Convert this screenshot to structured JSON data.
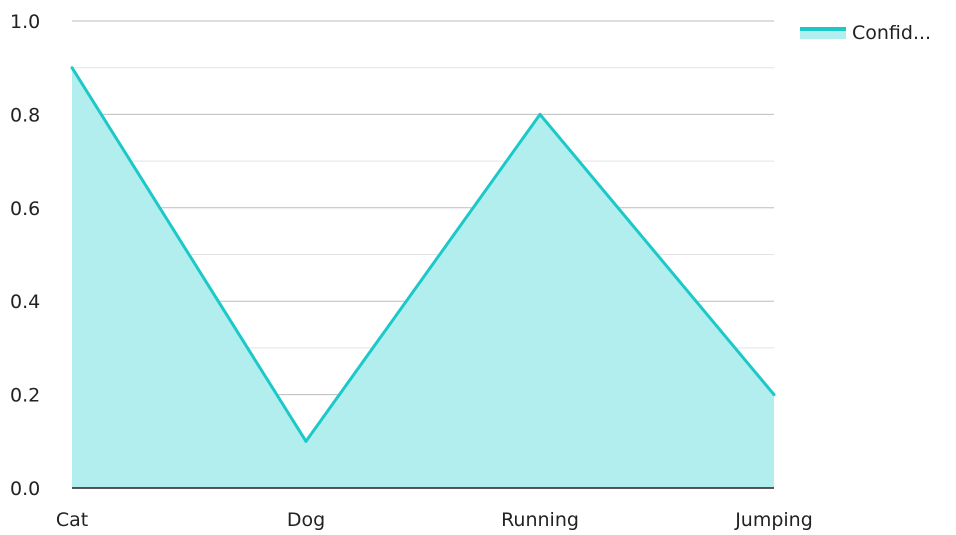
{
  "chart_data": {
    "type": "area",
    "categories": [
      "Cat",
      "Dog",
      "Running",
      "Jumping"
    ],
    "series": [
      {
        "name": "Confid...",
        "values": [
          0.9,
          0.1,
          0.8,
          0.2
        ]
      }
    ],
    "ylim": [
      0,
      1.0
    ],
    "y_ticks": [
      "0.0",
      "0.2",
      "0.4",
      "0.6",
      "0.8",
      "1.0"
    ],
    "grid": true,
    "legend_position": "top-right",
    "colors": {
      "line": "#1CC8C8",
      "fill": "#B2EEEE",
      "grid_major": "#BDBDBD",
      "grid_minor": "#E3E3E3",
      "axis": "#222222"
    }
  }
}
